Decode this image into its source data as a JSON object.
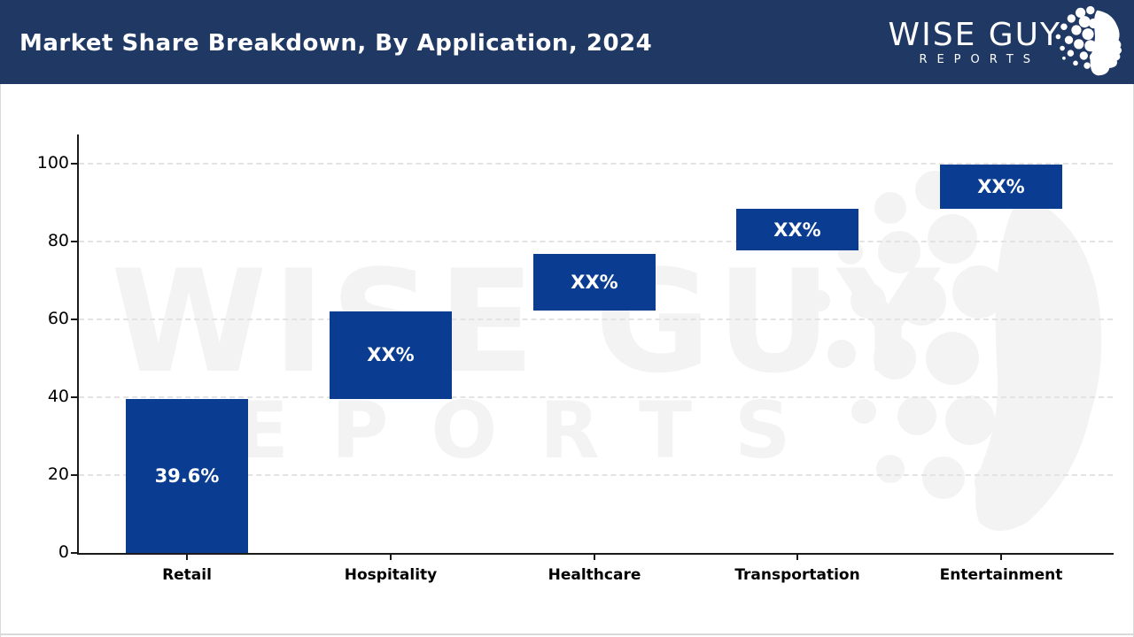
{
  "header": {
    "title": "Market Share Breakdown, By Application, 2024",
    "logo": {
      "line1": "WISE GUY",
      "line2": "REPORTS"
    }
  },
  "watermark": {
    "line1": "WISE GUY",
    "line2": "REPORTS"
  },
  "colors": {
    "header_bg": "#1f3864",
    "bar": "#0a3d91",
    "bar_label": "#ffffff",
    "grid": "#e3e3e3",
    "axis": "#1a1a1a",
    "watermark": "#f3f3f3"
  },
  "chart_data": {
    "type": "bar",
    "subtype": "waterfall",
    "title": "Market Share Breakdown, By Application, 2024",
    "xlabel": "",
    "ylabel": "",
    "categories": [
      "Retail",
      "Hospitality",
      "Healthcare",
      "Transportation",
      "Entertainment"
    ],
    "segments": [
      {
        "category": "Retail",
        "start": 0,
        "end": 39.6,
        "label": "39.6%"
      },
      {
        "category": "Hospitality",
        "start": 39.6,
        "end": 62.0,
        "label": "XX%"
      },
      {
        "category": "Healthcare",
        "start": 62.3,
        "end": 76.8,
        "label": "XX%"
      },
      {
        "category": "Transportation",
        "start": 77.7,
        "end": 88.4,
        "label": "XX%"
      },
      {
        "category": "Entertainment",
        "start": 88.4,
        "end": 99.8,
        "label": "XX%"
      }
    ],
    "yticks": [
      0,
      20,
      40,
      60,
      80,
      100
    ],
    "ylim": [
      0,
      107
    ],
    "grid": "horizontal-dashed",
    "legend": "none"
  }
}
